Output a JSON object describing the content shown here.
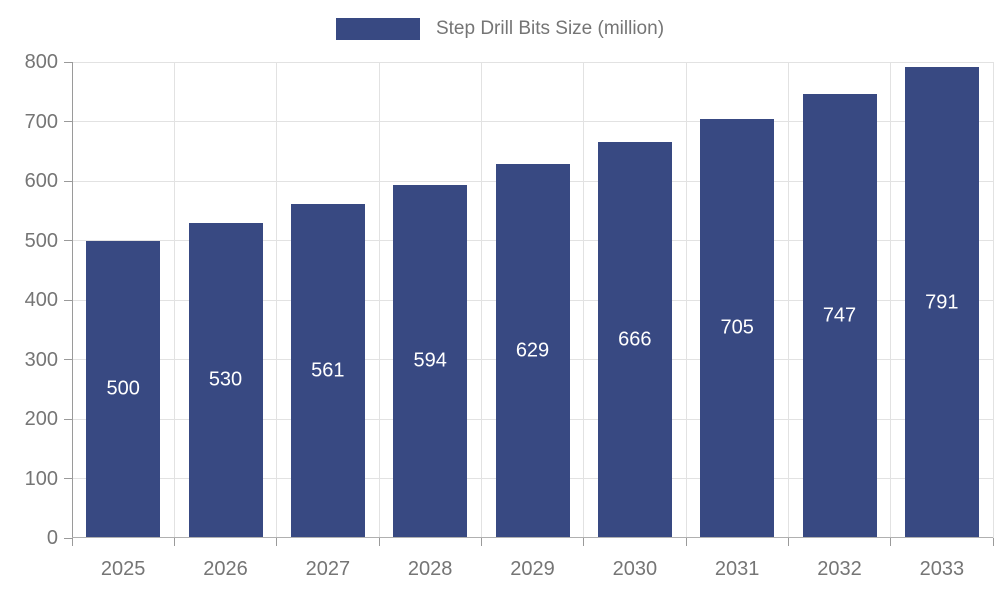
{
  "legend": {
    "label": "Step Drill Bits Size (million)"
  },
  "chart_data": {
    "type": "bar",
    "title": "Step Drill Bits Size (million)",
    "categories": [
      "2025",
      "2026",
      "2027",
      "2028",
      "2029",
      "2030",
      "2031",
      "2032",
      "2033"
    ],
    "values": [
      500,
      530,
      561,
      594,
      629,
      666,
      705,
      747,
      791
    ],
    "xlabel": "",
    "ylabel": "",
    "ylim": [
      0,
      800
    ],
    "yticks": [
      0,
      100,
      200,
      300,
      400,
      500,
      600,
      700,
      800
    ],
    "grid": true,
    "legend_position": "top-center",
    "bar_color": "#384982",
    "value_label_color": "#ffffff",
    "axis_label_color": "#757575",
    "gridline_color": "#e2e2e2",
    "y_axis_line_color": "#9a9a9a",
    "x_axis_line_color": "#b0b0b0"
  }
}
